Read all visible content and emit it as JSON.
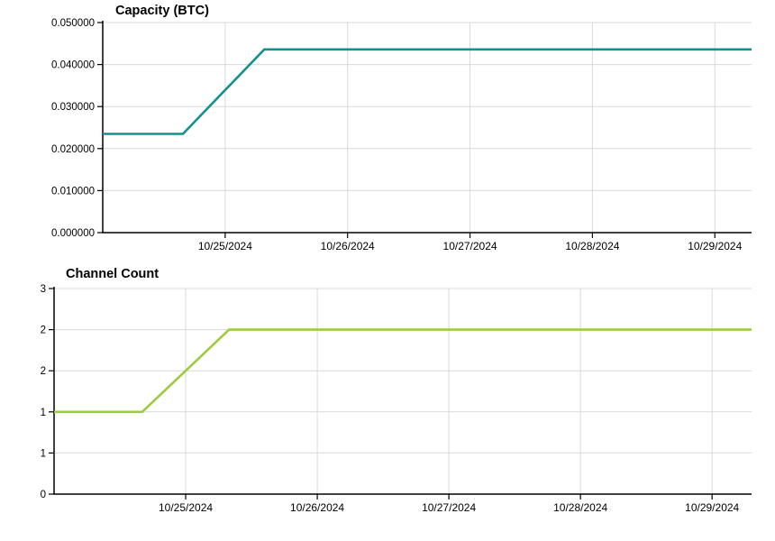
{
  "page": {
    "background": "#ffffff"
  },
  "styles": {
    "grid_color": "#d9d9d9",
    "axis_color": "#000000",
    "label_color": "#000000"
  },
  "chart_data": [
    {
      "id": "capacity",
      "type": "line",
      "title": "Capacity (BTC)",
      "line_color": "#12918f",
      "grid": true,
      "legend": "none",
      "xlim": [
        0,
        5.3
      ],
      "ylim": [
        0,
        0.05
      ],
      "x": [
        0,
        0.655,
        1.32,
        5.3
      ],
      "values": [
        0.0235,
        0.0235,
        0.0436,
        0.0436
      ],
      "x_note": "x axis is time; 0 = 10/24/2024 00:00, units = days; capacity rises from ~0.0235 BTC to ~0.0436 BTC between 10/24 ~16:00 and 10/25 ~08:00",
      "yticks": {
        "values": [
          0.05,
          0.04,
          0.03,
          0.02,
          0.01,
          0
        ],
        "labels": [
          "0.050000",
          "0.040000",
          "0.030000",
          "0.020000",
          "0.010000",
          "0.000000"
        ]
      },
      "xticks": {
        "values": [
          1,
          2,
          3,
          4,
          5
        ],
        "labels": [
          "10/25/2024",
          "10/26/2024",
          "10/27/2024",
          "10/28/2024",
          "10/29/2024"
        ]
      }
    },
    {
      "id": "channel_count",
      "type": "line",
      "title": "Channel Count",
      "line_color": "#9ccb3e",
      "grid": true,
      "legend": "none",
      "xlim": [
        0,
        5.3
      ],
      "ylim": [
        0,
        2.5
      ],
      "x": [
        0,
        0.67,
        1.33,
        5.3
      ],
      "values": [
        1,
        1,
        2,
        2
      ],
      "x_note": "x axis is time; 0 = 10/24/2024 00:00, units = days; channel count rises from 1 to 2 between 10/24 ~16:00 and 10/25 ~08:00",
      "yticks": {
        "values": [
          2.5,
          2,
          1.5,
          1,
          0.5,
          0
        ],
        "labels": [
          "3",
          "2",
          "2",
          "1",
          "1",
          "0"
        ]
      },
      "xticks": {
        "values": [
          1,
          2,
          3,
          4,
          5
        ],
        "labels": [
          "10/25/2024",
          "10/26/2024",
          "10/27/2024",
          "10/28/2024",
          "10/29/2024"
        ]
      }
    }
  ]
}
